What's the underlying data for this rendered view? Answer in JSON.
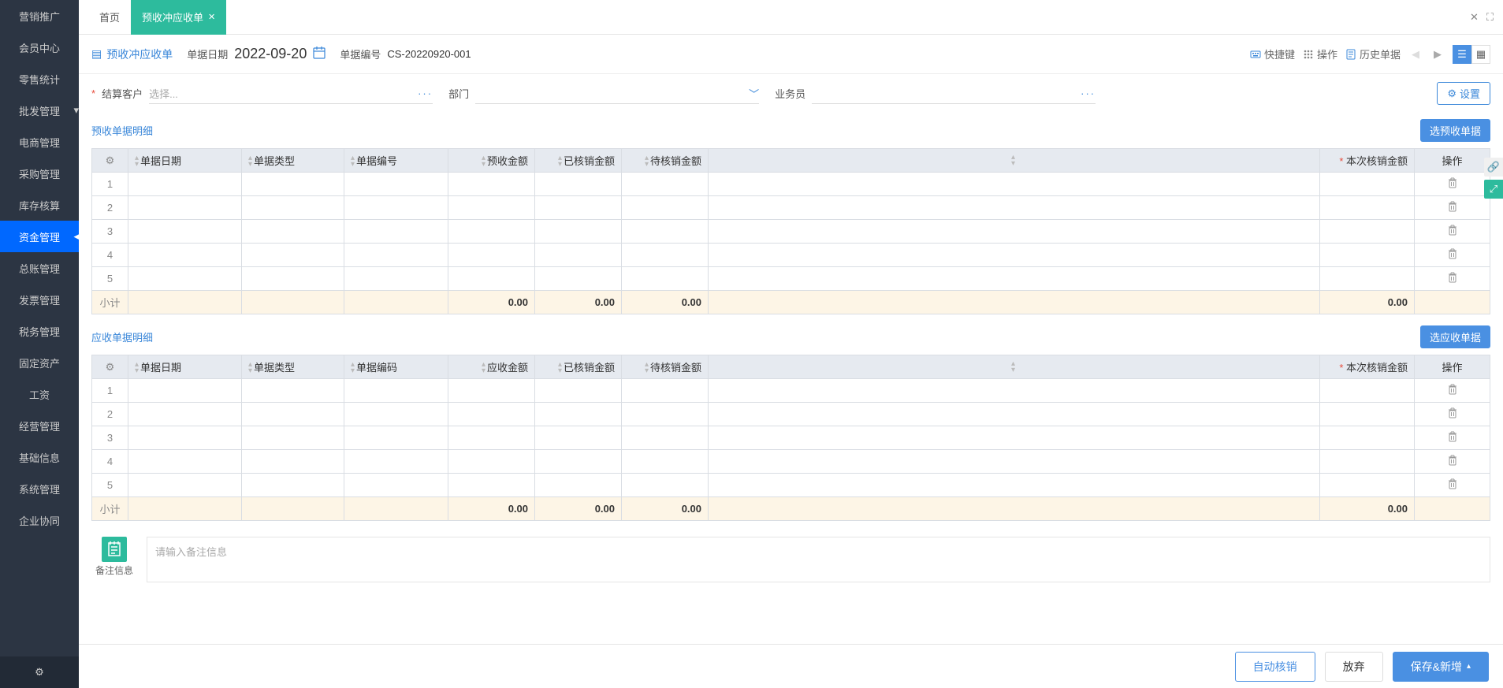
{
  "sidebar": {
    "items": [
      {
        "label": "营销推广"
      },
      {
        "label": "会员中心"
      },
      {
        "label": "零售统计"
      },
      {
        "label": "批发管理",
        "caret": true
      },
      {
        "label": "电商管理"
      },
      {
        "label": "采购管理"
      },
      {
        "label": "库存核算"
      },
      {
        "label": "资金管理",
        "active": true,
        "indicator": true
      },
      {
        "label": "总账管理"
      },
      {
        "label": "发票管理"
      },
      {
        "label": "税务管理"
      },
      {
        "label": "固定资产"
      },
      {
        "label": "工资"
      },
      {
        "label": "经营管理"
      },
      {
        "label": "基础信息"
      },
      {
        "label": "系统管理"
      },
      {
        "label": "企业协同"
      }
    ]
  },
  "tabs": {
    "home": "首页",
    "active": "预收冲应收单"
  },
  "doc": {
    "title": "预收冲应收单",
    "date_label": "单据日期",
    "date_value": "2022-09-20",
    "code_label": "单据编号",
    "code_value": "CS-20220920-001",
    "actions": {
      "shortcut": "快捷键",
      "operate": "操作",
      "history": "历史单据"
    }
  },
  "form": {
    "customer_label": "结算客户",
    "customer_placeholder": "选择...",
    "dept_label": "部门",
    "sales_label": "业务员",
    "settings": "设置"
  },
  "section1": {
    "title": "预收单据明细",
    "button": "选预收单据",
    "cols": {
      "date": "单据日期",
      "type": "单据类型",
      "code": "单据编号",
      "amt_pre": "预收金额",
      "amt_verified": "已核销金额",
      "amt_pending": "待核销金额",
      "amt_this": "本次核销金额",
      "op": "操作"
    },
    "subtotal_label": "小计",
    "zero": "0.00"
  },
  "section2": {
    "title": "应收单据明细",
    "button": "选应收单据",
    "cols": {
      "date": "单据日期",
      "type": "单据类型",
      "code": "单据编码",
      "amt_recv": "应收金额",
      "amt_verified": "已核销金额",
      "amt_pending": "待核销金额",
      "amt_this": "本次核销金额",
      "op": "操作"
    },
    "subtotal_label": "小计",
    "zero": "0.00"
  },
  "remark": {
    "label": "备注信息",
    "placeholder": "请输入备注信息"
  },
  "footer": {
    "auto": "自动核销",
    "discard": "放弃",
    "save_new": "保存&新增"
  },
  "rows": [
    "1",
    "2",
    "3",
    "4",
    "5"
  ],
  "colors": {
    "sidebar_bg": "#2c3543",
    "active_nav": "#0068ff",
    "teal": "#2dbb9d",
    "primary": "#4a90e2",
    "link": "#3a87d9",
    "th_bg": "#e6eaf0",
    "subtotal_bg": "#fdf5e6",
    "border": "#d9dde3"
  }
}
